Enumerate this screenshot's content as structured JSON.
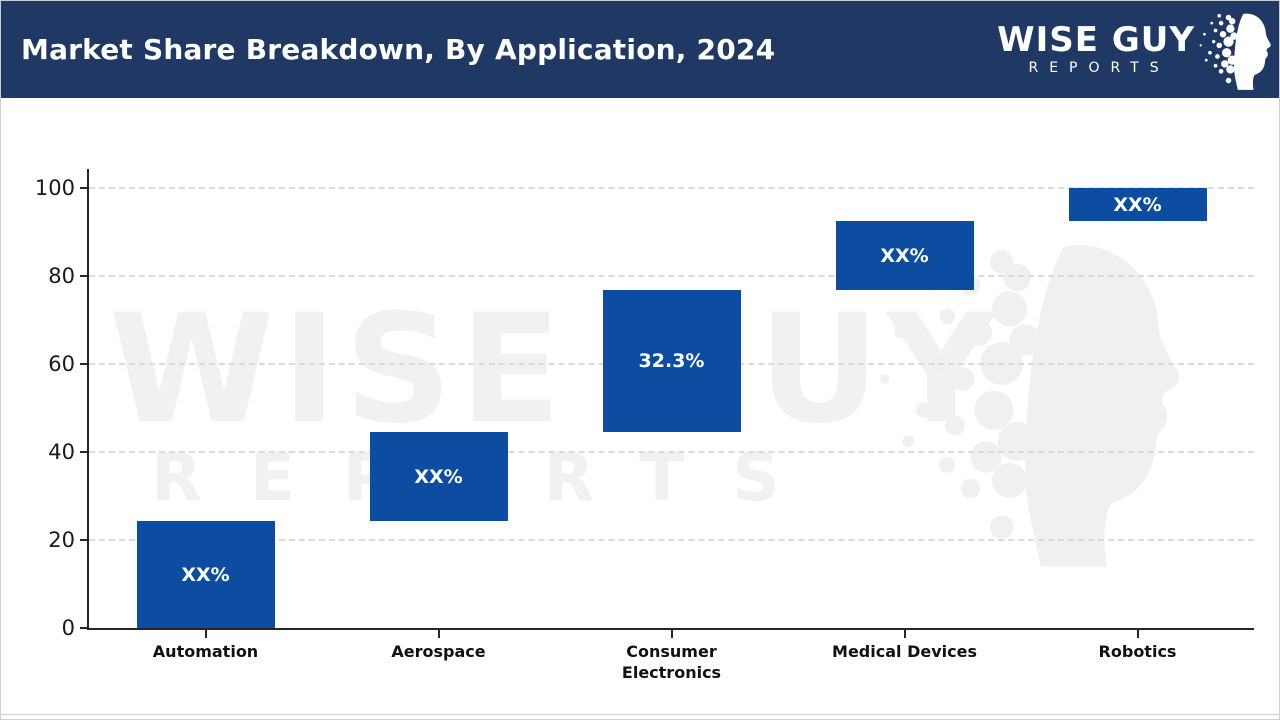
{
  "header": {
    "title": "Market Share Breakdown, By Application, 2024",
    "bg_color": "#1f3864",
    "logo": {
      "line1": "WISE GUY",
      "line2": "REPORTS"
    }
  },
  "watermark": {
    "line1": "WISE GUY",
    "line2": "REPORTS"
  },
  "chart_data": {
    "type": "bar",
    "subtype": "waterfall",
    "title": "Market Share Breakdown, By Application, 2024",
    "categories": [
      "Automation",
      "Aerospace",
      "Consumer\nElectronics",
      "Medical Devices",
      "Robotics"
    ],
    "segments": [
      {
        "category": "Automation",
        "from": 0,
        "to": 24.3,
        "label": "XX%"
      },
      {
        "category": "Aerospace",
        "from": 24.3,
        "to": 44.5,
        "label": "XX%"
      },
      {
        "category": "Consumer Electronics",
        "from": 44.5,
        "to": 76.8,
        "label": "32.3%"
      },
      {
        "category": "Medical Devices",
        "from": 76.8,
        "to": 92.5,
        "label": "XX%"
      },
      {
        "category": "Robotics",
        "from": 92.5,
        "to": 100,
        "label": "XX%"
      }
    ],
    "xlabel": "",
    "ylabel": "",
    "ylim": [
      0,
      100
    ],
    "yticks": [
      0,
      20,
      40,
      60,
      80,
      100
    ],
    "grid": "horizontal-dashed",
    "legend": "none",
    "bar_color": "#0c4da2",
    "bar_label_color": "#ffffff",
    "axis_color": "#262626",
    "gridline_color": "#dbdbdb"
  }
}
